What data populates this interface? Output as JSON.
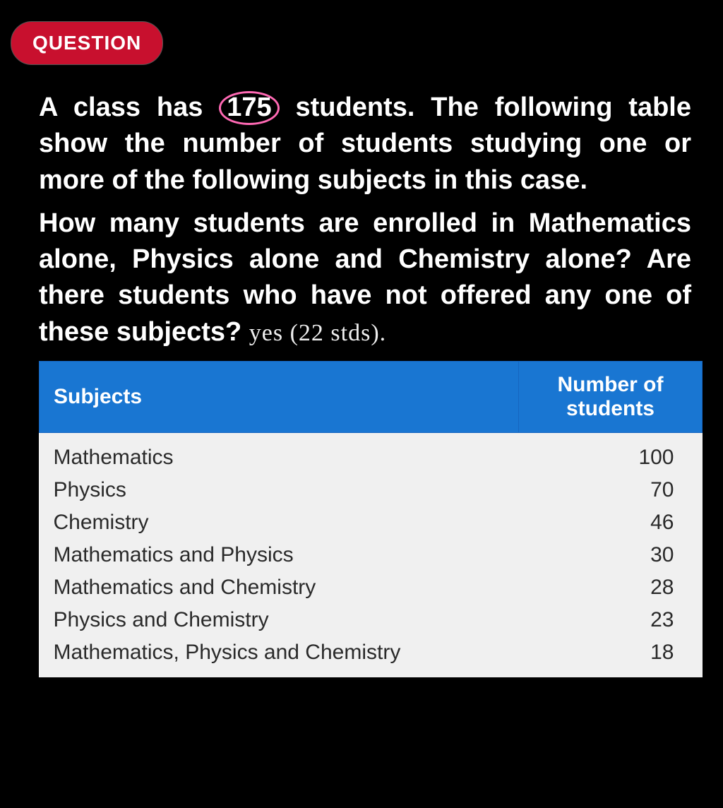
{
  "badge": {
    "label": "QUESTION",
    "bg_color": "#c8102e",
    "text_color": "#ffffff",
    "font_size": 28,
    "border_radius": 30
  },
  "question": {
    "text_before_number": "A class has ",
    "circled_number": "175",
    "text_after_number": " students. The following table show the number of students studying one or more of the following subjects in this case.",
    "prompt": "How many students are enrolled in Mathematics alone, Physics alone and Chemistry alone? Are there students who have not offered any one of these subjects?",
    "handwritten_note": "yes (22 stds).",
    "circle_color": "#ff69b4",
    "font_size": 38,
    "text_color": "#ffffff"
  },
  "table": {
    "type": "table",
    "header_bg_color": "#1976d2",
    "header_text_color": "#ffffff",
    "body_bg_color": "#f0f0f0",
    "body_text_color": "#2a2a2a",
    "header_font_size": 30,
    "body_font_size": 30,
    "columns": [
      "Subjects",
      "Number of students"
    ],
    "rows": [
      [
        "Mathematics",
        "100"
      ],
      [
        "Physics",
        "70"
      ],
      [
        "Chemistry",
        "46"
      ],
      [
        "Mathematics and Physics",
        "30"
      ],
      [
        "Mathematics and Chemistry",
        "28"
      ],
      [
        "Physics and Chemistry",
        "23"
      ],
      [
        "Mathematics, Physics and Chemistry",
        "18"
      ]
    ]
  }
}
